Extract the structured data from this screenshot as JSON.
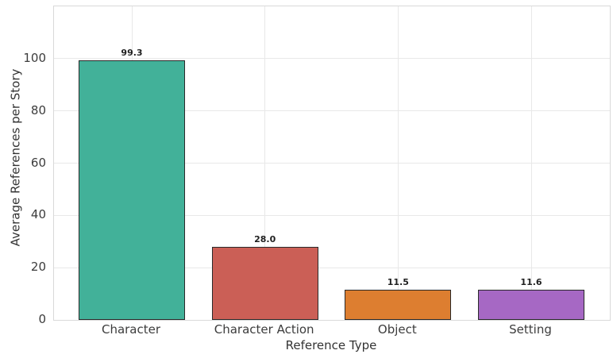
{
  "chart_data": {
    "type": "bar",
    "title": "",
    "categories": [
      "Character",
      "Character Action",
      "Object",
      "Setting"
    ],
    "values": [
      99.3,
      28.0,
      11.5,
      11.6
    ],
    "value_labels": [
      "99.3",
      "28.0",
      "11.5",
      "11.6"
    ],
    "bar_colors": [
      "#42b199",
      "#cb5f56",
      "#dd7e30",
      "#a668c4"
    ],
    "xlabel": "Reference Type",
    "ylabel": "Average References per Story",
    "yticks": [
      0,
      20,
      40,
      60,
      80,
      100
    ],
    "ylim": [
      0,
      120
    ],
    "grid": true,
    "legend": false,
    "style": {
      "bar_edge_color": "#2a2a2a",
      "grid_color": "#e8e8e8",
      "spine_color": "#d9d9d9",
      "tick_label_color": "#3c3c3c",
      "axis_label_color": "#333333",
      "value_label_color": "#1f1f1f",
      "background": "#ffffff"
    }
  }
}
